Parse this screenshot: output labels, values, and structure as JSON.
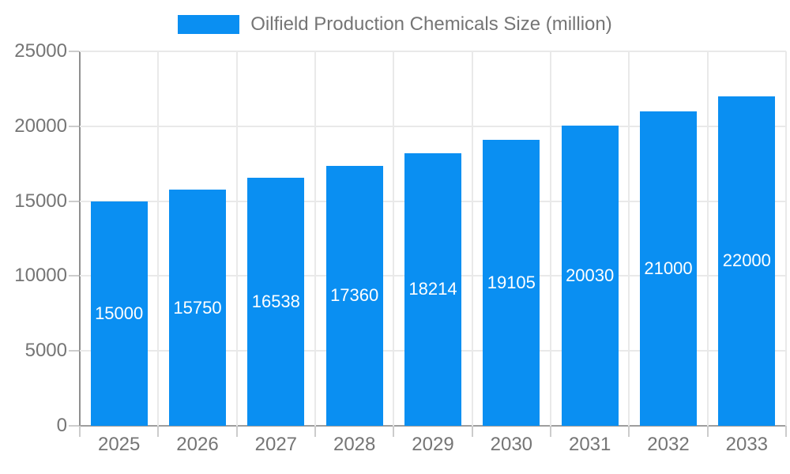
{
  "chart_data": {
    "type": "bar",
    "title": "Oilfield Production Chemicals Size (million)",
    "categories": [
      "2025",
      "2026",
      "2027",
      "2028",
      "2029",
      "2030",
      "2031",
      "2032",
      "2033"
    ],
    "values": [
      15000,
      15750,
      16538,
      17360,
      18214,
      19105,
      20030,
      21000,
      22000
    ],
    "xlabel": "",
    "ylabel": "",
    "ylim": [
      0,
      25000
    ],
    "y_ticks": [
      0,
      5000,
      10000,
      15000,
      20000,
      25000
    ],
    "grid": true,
    "legend_position": "top-center",
    "data_labels": "inside-center-white",
    "colors": {
      "bar": "#0A8FF2",
      "bar_label_text": "#ffffff",
      "axis_text": "#757575",
      "axis_line": "#8f8f8f",
      "baseline": "#9e9e9e",
      "tick": "#cccccc",
      "gridline": "#e9e9e9",
      "background": "#ffffff"
    }
  }
}
